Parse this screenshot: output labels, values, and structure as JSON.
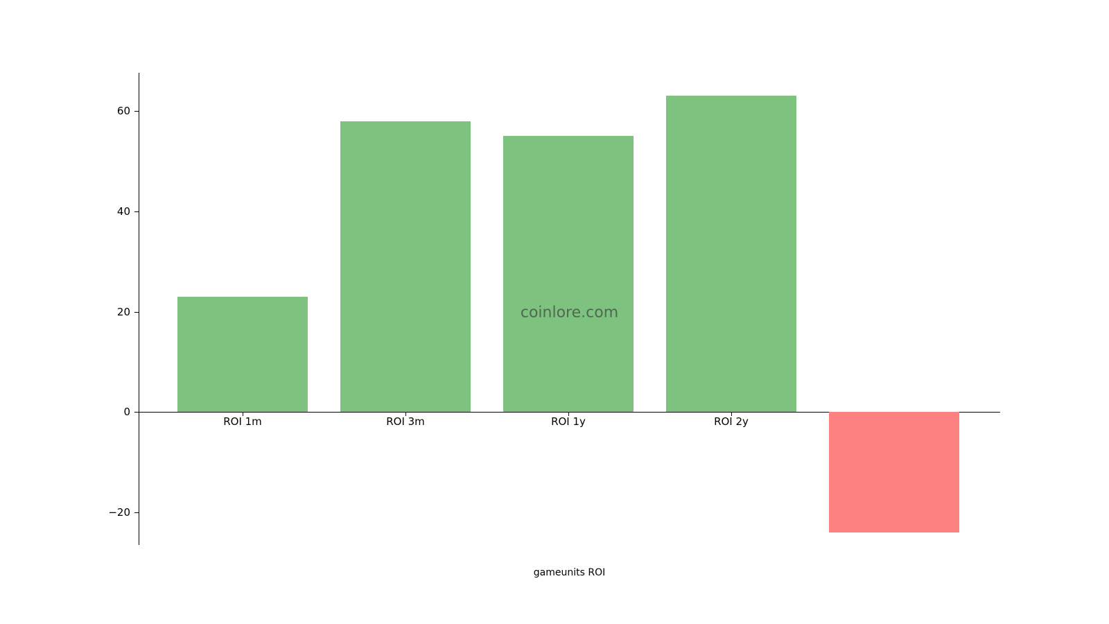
{
  "chart_data": {
    "type": "bar",
    "title": "",
    "xlabel": "gameunits ROI",
    "ylabel": "",
    "categories": [
      "ROI 1m",
      "ROI 3m",
      "ROI 1y",
      "ROI 2y",
      ""
    ],
    "values": [
      23,
      58,
      55,
      63,
      -24
    ],
    "yticks": [
      -20,
      0,
      20,
      40,
      60
    ],
    "ylim": [
      -26.5,
      67.6
    ],
    "grid": false,
    "legend": false,
    "watermark": "coinlore.com",
    "colors": {
      "positive_bar": "#7dc37f",
      "negative_bar": "#fc8181",
      "axis": "#000000",
      "text": "#000000",
      "watermark": "#333333"
    }
  }
}
